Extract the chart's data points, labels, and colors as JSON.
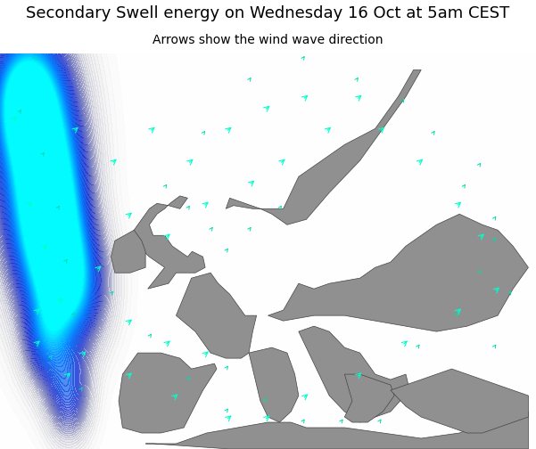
{
  "title": "Secondary Swell energy on Wednesday 16 Oct at 5am CEST",
  "subtitle": "Arrows show the wind wave direction",
  "title_fontsize": 13,
  "subtitle_fontsize": 10,
  "background_color": "#ffffff",
  "map_bg_color": "#000000",
  "land_color": "#aaaaaa",
  "swell_color_main": "#0055ff",
  "swell_color_bright": "#00aaff",
  "swell_color_cyan": "#00ffff",
  "fig_width": 6.01,
  "fig_height": 5.04,
  "dpi": 100
}
